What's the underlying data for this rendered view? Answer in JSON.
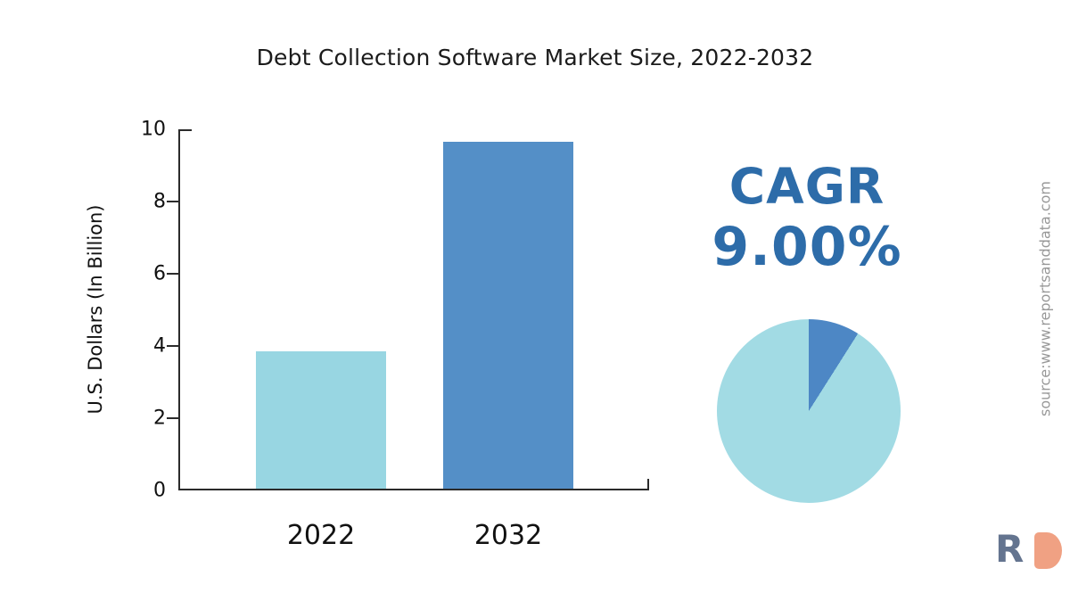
{
  "title": "Debt Collection Software Market Size, 2022-2032",
  "source": "source:www.reportsanddata.com",
  "cagr": {
    "label": "CAGR",
    "value": "9.00%",
    "percent": 9,
    "color": "#2d6ca9"
  },
  "logo": {
    "letter": "R",
    "r_color": "#64748f",
    "d_color": "#f0a183"
  },
  "chart_data": [
    {
      "type": "bar",
      "title": "Debt Collection Software Market Size, 2022-2032",
      "categories": [
        "2022",
        "2032"
      ],
      "values": [
        3.8,
        9.6
      ],
      "bar_colors": [
        "#98d6e2",
        "#548fc7"
      ],
      "xlabel": "",
      "ylabel": "U.S. Dollars (In Billion)",
      "ylim": [
        0,
        10
      ],
      "yticks": [
        0,
        2,
        4,
        6,
        8,
        10
      ],
      "grid": false,
      "legend": "none"
    },
    {
      "type": "pie",
      "title": "CAGR 9.00%",
      "slices": [
        {
          "label": "CAGR",
          "value": 9,
          "color": "#4d87c5"
        },
        {
          "label": "remainder",
          "value": 91,
          "color": "#a2dbe4"
        }
      ],
      "start_angle_deg": 0,
      "direction": "clockwise",
      "legend": "none"
    }
  ]
}
